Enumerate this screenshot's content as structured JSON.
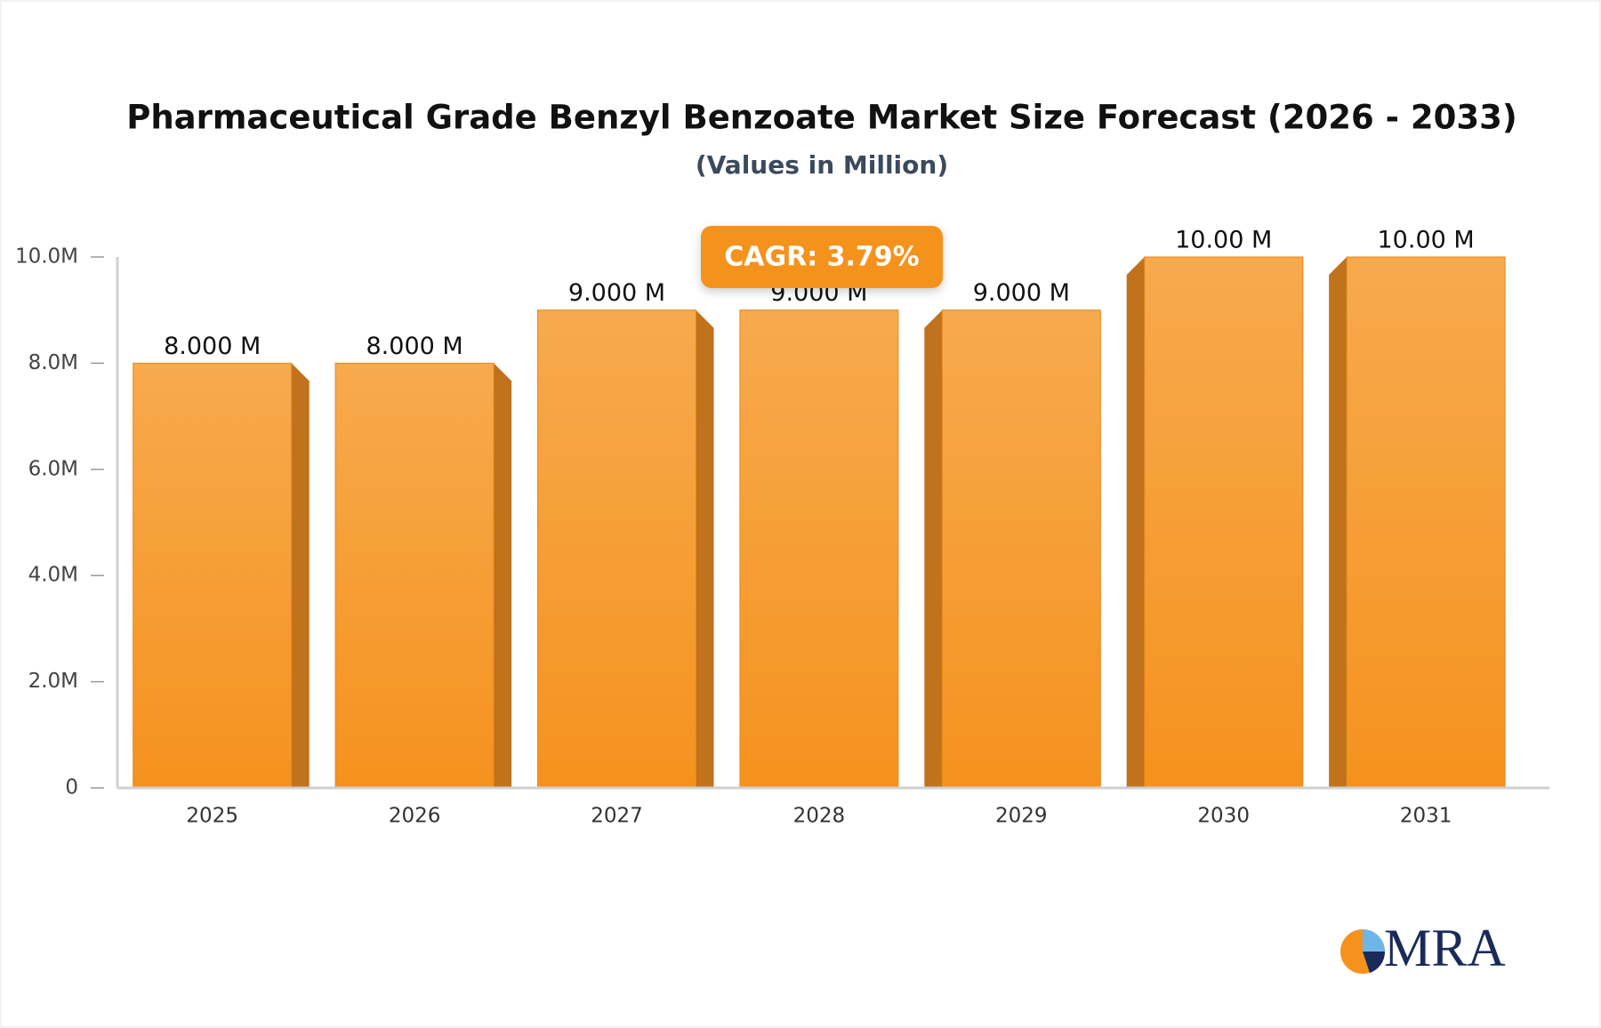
{
  "chart_data": {
    "type": "bar3d",
    "title": "Pharmaceutical Grade Benzyl Benzoate Market Size Forecast (2026 - 2033)",
    "subtitle": "(Values in Million)",
    "annotation": "CAGR: 3.79%",
    "categories": [
      "2025",
      "2026",
      "2027",
      "2028",
      "2029",
      "2030",
      "2031"
    ],
    "values": [
      8,
      8,
      9,
      9,
      9,
      10,
      10
    ],
    "value_labels": [
      "8.000 M",
      "8.000 M",
      "9.000 M",
      "9.000 M",
      "9.000 M",
      "10.00 M",
      "10.00 M"
    ],
    "color": "#f5961f",
    "ylim": [
      0,
      10
    ],
    "yticks": [
      0,
      {
        "value": 2,
        "label": "2.0M"
      },
      {
        "value": 4,
        "label": "4.0M"
      },
      {
        "value": 6,
        "label": "6.0M"
      },
      {
        "value": 8,
        "label": "8.0M"
      },
      {
        "value": 10,
        "label": "10.0M"
      }
    ],
    "grid": false
  },
  "logo": "MRA"
}
